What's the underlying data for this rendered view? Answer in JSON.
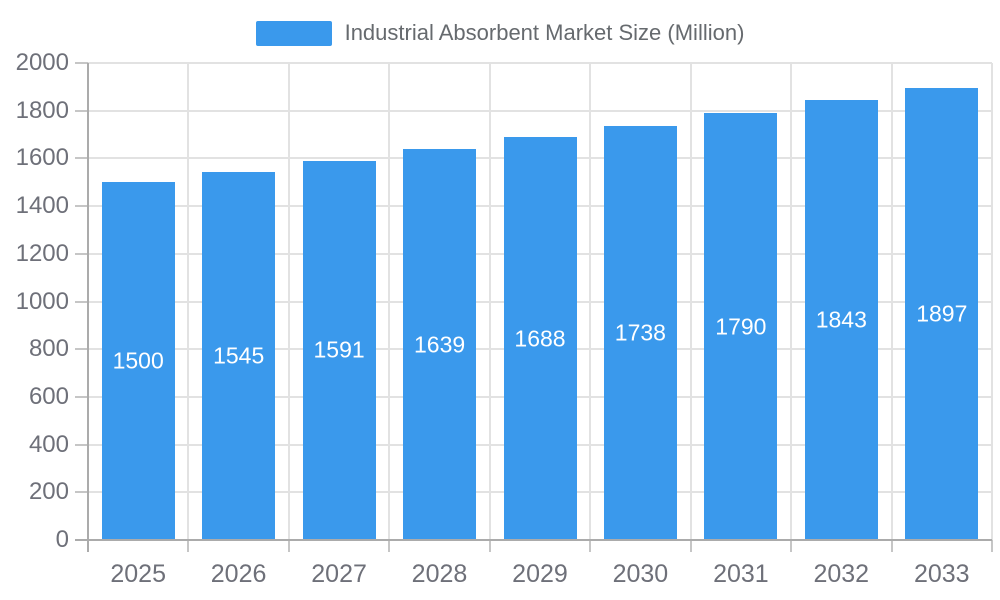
{
  "legend": {
    "label": "Industrial Absorbent Market Size (Million)"
  },
  "chart_data": {
    "type": "bar",
    "title": "Industrial Absorbent Market Size (Million)",
    "categories": [
      "2025",
      "2026",
      "2027",
      "2028",
      "2029",
      "2030",
      "2031",
      "2032",
      "2033"
    ],
    "values": [
      1500,
      1545,
      1591,
      1639,
      1688,
      1738,
      1790,
      1843,
      1897
    ],
    "xlabel": "",
    "ylabel": "",
    "ylim": [
      0,
      2000
    ],
    "yticks": [
      0,
      200,
      400,
      600,
      800,
      1000,
      1200,
      1400,
      1600,
      1800,
      2000
    ],
    "grid": true,
    "legend_position": "top-center",
    "colors": {
      "bar": "#3a99ec",
      "bar_label": "#ffffff",
      "axis_text": "#6e7079",
      "legend_text": "#666a6e",
      "grid_line": "#e2e2e2",
      "axis_line": "#ababab"
    }
  }
}
